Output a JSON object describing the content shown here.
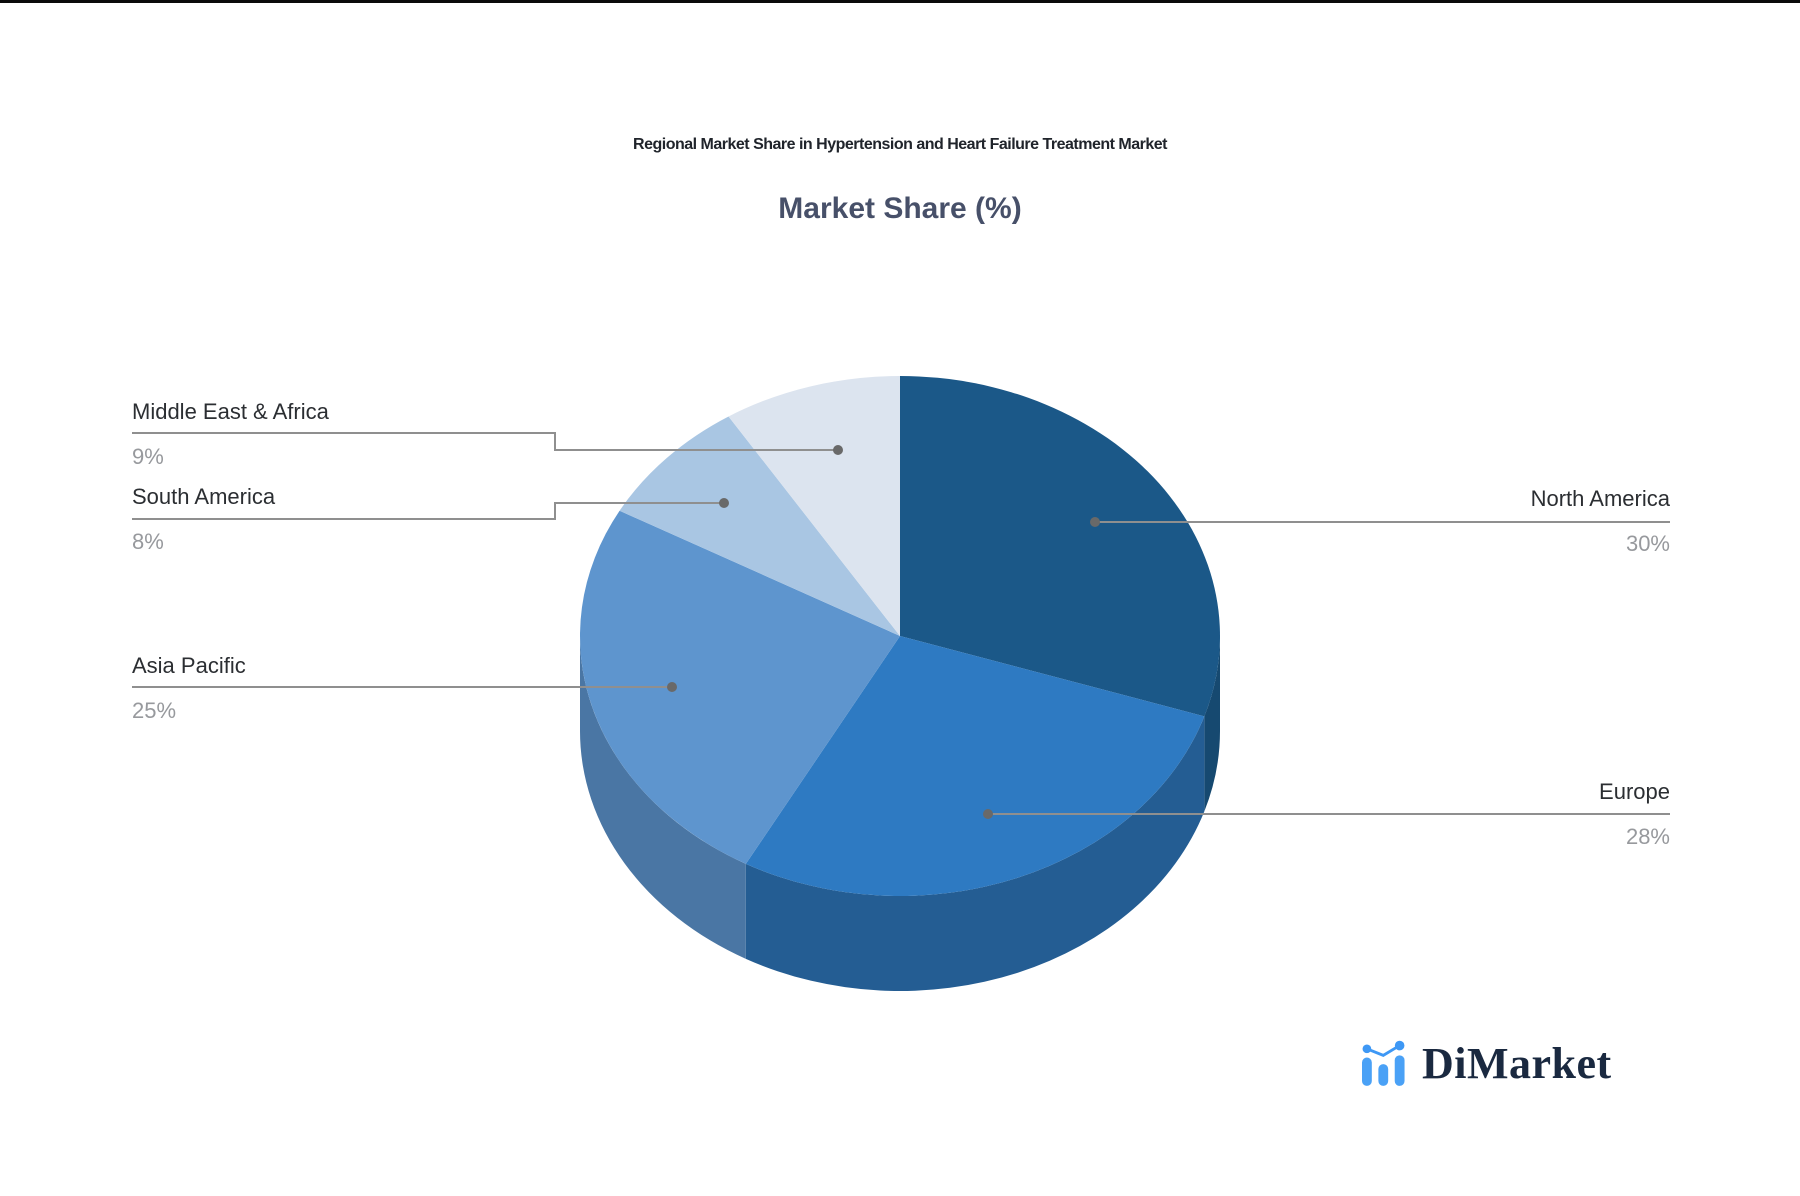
{
  "title": "Regional Market Share in Hypertension and Heart Failure Treatment Market",
  "subtitle": "Market Share (%)",
  "chart_data": {
    "type": "pie",
    "title": "Regional Market Share in Hypertension and Heart Failure Treatment Market",
    "value_label": "Market Share (%)",
    "unit": "%",
    "start_angle_deg": 0,
    "direction": "clockwise",
    "style": "3d-pie",
    "slices": [
      {
        "label": "North America",
        "value": 30,
        "pct_label": "30%",
        "color": "#1b5888",
        "side_color": "#164970"
      },
      {
        "label": "Europe",
        "value": 28,
        "pct_label": "28%",
        "color": "#2e7ac2",
        "side_color": "#245d93"
      },
      {
        "label": "Asia Pacific",
        "value": 25,
        "pct_label": "25%",
        "color": "#5e95ce",
        "side_color": "#4a76a4"
      },
      {
        "label": "South America",
        "value": 8,
        "pct_label": "8%",
        "color": "#a9c6e3",
        "side_color": "#8aa6c2"
      },
      {
        "label": "Middle East & Africa",
        "value": 9,
        "pct_label": "9%",
        "color": "#dce4ef",
        "side_color": "#b4c0cf"
      }
    ]
  },
  "colors": {
    "leader_line": "#8f8f8f",
    "leader_dot": "#696969",
    "title_text": "#20242b",
    "subtitle_text": "#475069",
    "label_text": "#2b2e32",
    "pct_text": "#97999d",
    "logo_bars": "#4aa1f6",
    "logo_text": "#1a2940"
  },
  "logo": {
    "brand": "DiMarket"
  }
}
